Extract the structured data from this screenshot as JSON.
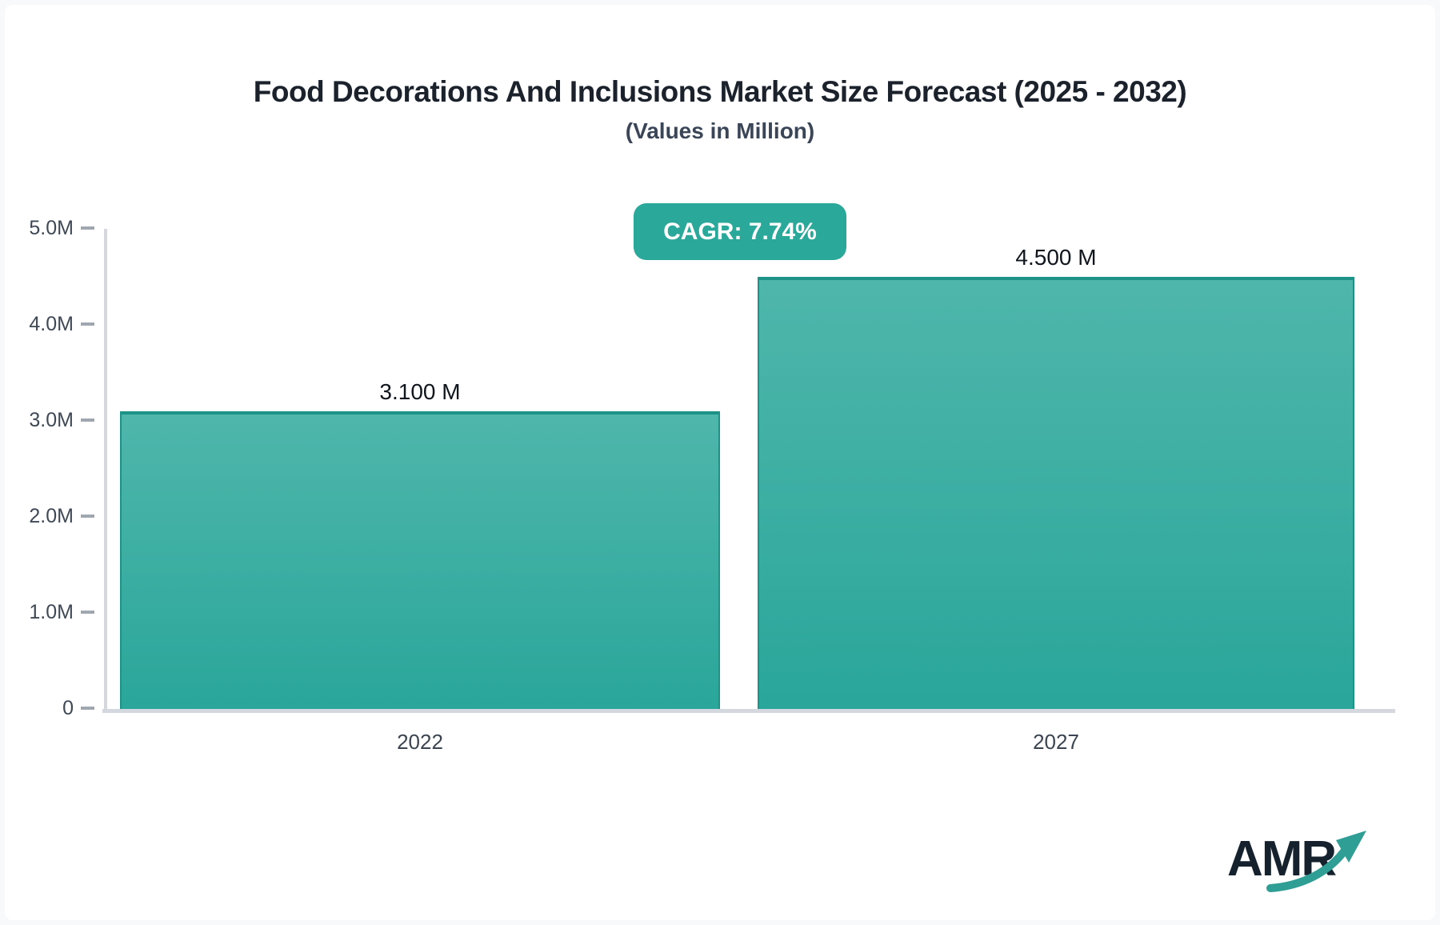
{
  "header": {
    "title": "Food Decorations And Inclusions Market Size Forecast (2025 - 2032)",
    "subtitle": "(Values in Million)"
  },
  "badge": {
    "label": "CAGR: 7.74%"
  },
  "chart_data": {
    "type": "bar",
    "title": "Food Decorations And Inclusions Market Size Forecast (2025 - 2032)",
    "subtitle": "(Values in Million)",
    "unit": "Million",
    "cagr_percent": 7.74,
    "categories": [
      "2022",
      "2027"
    ],
    "values": [
      3100,
      4500
    ],
    "value_labels": [
      "3.100 M",
      "4.500 M"
    ],
    "xlabel": "",
    "ylabel": "",
    "ylim": [
      0,
      5000
    ],
    "ytick_labels": [
      "0",
      "1.0M",
      "2.0M",
      "3.0M",
      "4.0M",
      "5.0M"
    ],
    "grid": false,
    "legend": "none",
    "bar_colors": {
      "fill_top": "#4fb6ab",
      "fill_bottom": "#2aa69a",
      "edge": "#1d9287"
    }
  },
  "logo": {
    "text": "AMR",
    "arrow_color": "#2f9e94"
  },
  "colors": {
    "badge_bg": "#2aa99b",
    "axis_line": "#d4d8de",
    "tick": "#a0a7b0",
    "title_text": "#1b222c",
    "subtitle_text": "#3a4557",
    "axis_text": "#3f4955",
    "logo_text": "#15222e"
  }
}
